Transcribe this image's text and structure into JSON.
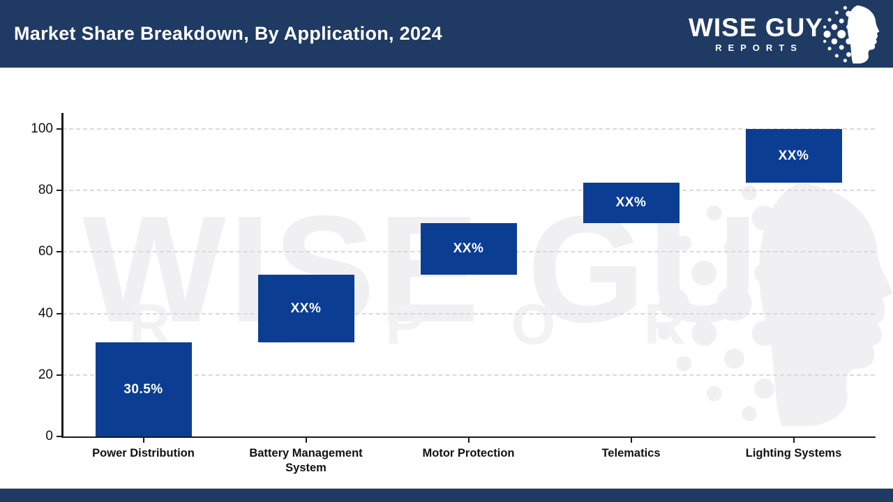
{
  "header": {
    "title": "Market Share Breakdown, By Application, 2024",
    "brand_line1": "WISE GUY",
    "brand_line2": "REPORTS"
  },
  "watermark": {
    "line1": "WISE GUY",
    "line2": "R E P O R T S"
  },
  "chart_data": {
    "type": "bar",
    "subtype": "waterfall",
    "title": "Market Share Breakdown, By Application, 2024",
    "xlabel": "",
    "ylabel": "",
    "ylim": [
      0,
      100
    ],
    "yticks": [
      0,
      20,
      40,
      60,
      80,
      100
    ],
    "grid": "horizontal-dashed",
    "legend": "none",
    "categories": [
      "Power Distribution",
      "Battery Management System",
      "Motor Protection",
      "Telematics",
      "Lighting Systems"
    ],
    "segments": [
      {
        "category": "Power Distribution",
        "start": 0,
        "end": 30.5,
        "label": "30.5%"
      },
      {
        "category": "Battery Management System",
        "start": 30.5,
        "end": 52.5,
        "label": "XX%"
      },
      {
        "category": "Motor Protection",
        "start": 52.5,
        "end": 69.5,
        "label": "XX%"
      },
      {
        "category": "Telematics",
        "start": 69.5,
        "end": 82.5,
        "label": "XX%"
      },
      {
        "category": "Lighting Systems",
        "start": 82.5,
        "end": 100,
        "label": "XX%"
      }
    ],
    "bar_color": "#0B3E92",
    "bar_label_color": "#ffffff"
  },
  "colors": {
    "header_bg": "#1F3A63",
    "footer_bg": "#1F3A63",
    "axis": "#1a1a1a",
    "gridline": "#d9d9d9",
    "watermark": "#f0f0f3",
    "background": "#ffffff"
  }
}
